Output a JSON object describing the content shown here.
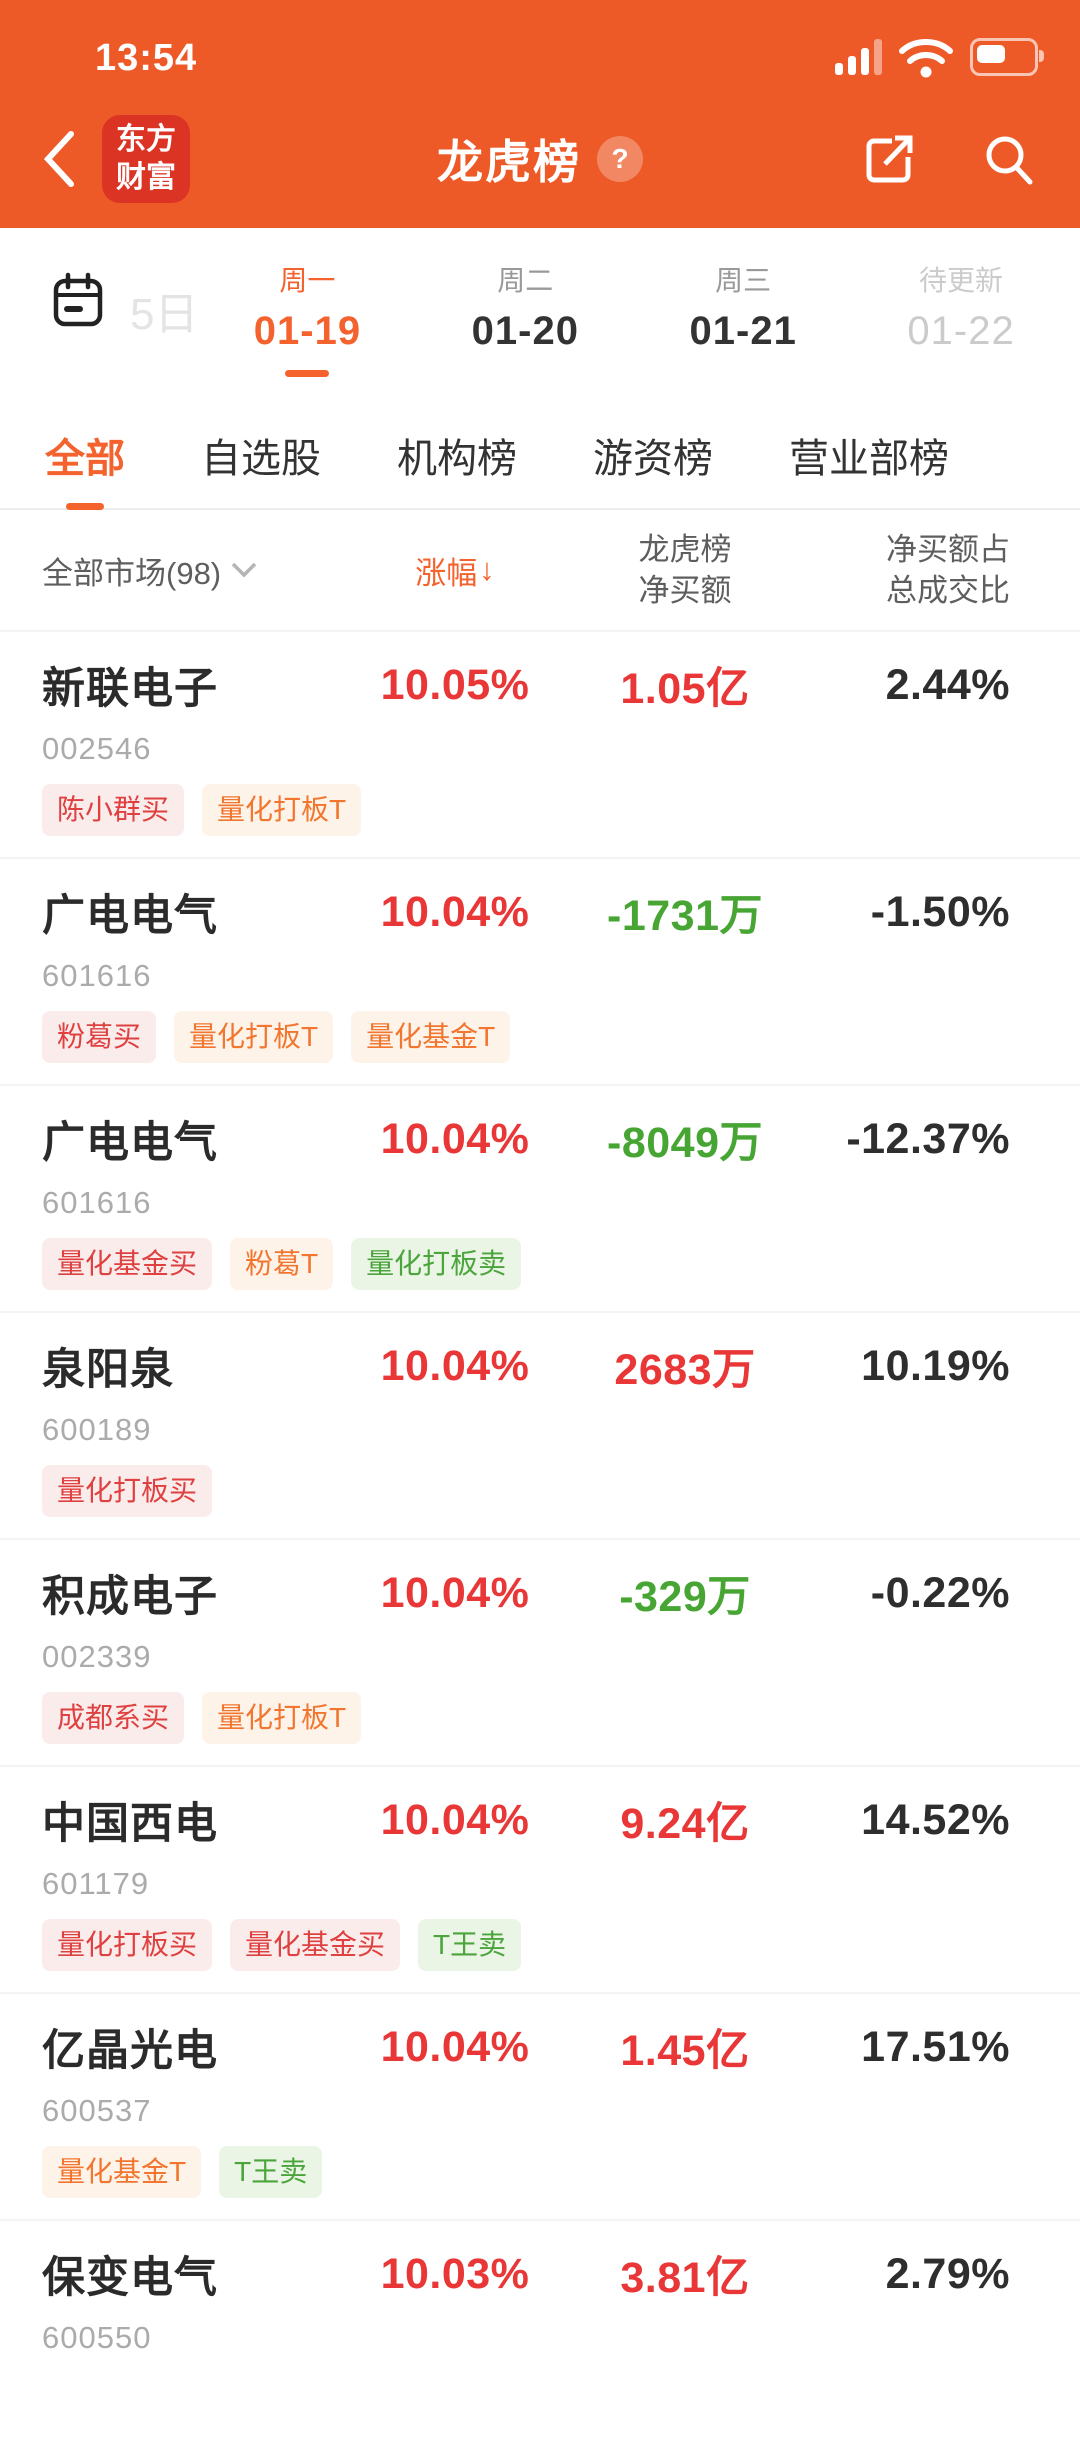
{
  "colors": {
    "header_bg": "#ED5A28",
    "accent": "#F4622E",
    "up_red": "#E93636",
    "down_green": "#47A533",
    "logo_red": "#DC3424"
  },
  "status_bar": {
    "time": "13:54"
  },
  "nav": {
    "logo_line1": "东方",
    "logo_line2": "财富",
    "title": "龙虎榜",
    "help_badge": "?"
  },
  "date_bar": {
    "partial_prev_date": "5日",
    "tabs": [
      {
        "label": "周一",
        "date": "01-19",
        "state": "active"
      },
      {
        "label": "周二",
        "date": "01-20",
        "state": "normal"
      },
      {
        "label": "周三",
        "date": "01-21",
        "state": "normal"
      },
      {
        "label": "待更新",
        "date": "01-22",
        "state": "pending"
      }
    ]
  },
  "category_tabs": [
    "全部",
    "自选股",
    "机构榜",
    "游资榜",
    "营业部榜"
  ],
  "table_header": {
    "filter": "全部市场(98)",
    "sort_label": "涨幅",
    "sort_arrow": "↓",
    "col3_line1": "龙虎榜",
    "col3_line2": "净买额",
    "col4_line1": "净买额占",
    "col4_line2": "总成交比"
  },
  "rows": [
    {
      "name": "新联电子",
      "code": "002546",
      "change": "10.05%",
      "net": "1.05亿",
      "net_color": "red",
      "ratio": "2.44%",
      "tags": [
        {
          "text": "陈小群买",
          "type": "red"
        },
        {
          "text": "量化打板T",
          "type": "orange"
        }
      ]
    },
    {
      "name": "广电电气",
      "code": "601616",
      "change": "10.04%",
      "net": "-1731万",
      "net_color": "green",
      "ratio": "-1.50%",
      "tags": [
        {
          "text": "粉葛买",
          "type": "red"
        },
        {
          "text": "量化打板T",
          "type": "orange"
        },
        {
          "text": "量化基金T",
          "type": "orange"
        }
      ]
    },
    {
      "name": "广电电气",
      "code": "601616",
      "change": "10.04%",
      "net": "-8049万",
      "net_color": "green",
      "ratio": "-12.37%",
      "tags": [
        {
          "text": "量化基金买",
          "type": "red"
        },
        {
          "text": "粉葛T",
          "type": "orange"
        },
        {
          "text": "量化打板卖",
          "type": "green"
        }
      ]
    },
    {
      "name": "泉阳泉",
      "code": "600189",
      "change": "10.04%",
      "net": "2683万",
      "net_color": "red",
      "ratio": "10.19%",
      "tags": [
        {
          "text": "量化打板买",
          "type": "red"
        }
      ]
    },
    {
      "name": "积成电子",
      "code": "002339",
      "change": "10.04%",
      "net": "-329万",
      "net_color": "green",
      "ratio": "-0.22%",
      "tags": [
        {
          "text": "成都系买",
          "type": "red"
        },
        {
          "text": "量化打板T",
          "type": "orange"
        }
      ]
    },
    {
      "name": "中国西电",
      "code": "601179",
      "change": "10.04%",
      "net": "9.24亿",
      "net_color": "red",
      "ratio": "14.52%",
      "tags": [
        {
          "text": "量化打板买",
          "type": "red"
        },
        {
          "text": "量化基金买",
          "type": "red"
        },
        {
          "text": "T王卖",
          "type": "green"
        }
      ]
    },
    {
      "name": "亿晶光电",
      "code": "600537",
      "change": "10.04%",
      "net": "1.45亿",
      "net_color": "red",
      "ratio": "17.51%",
      "tags": [
        {
          "text": "量化基金T",
          "type": "orange"
        },
        {
          "text": "T王卖",
          "type": "green"
        }
      ]
    },
    {
      "name": "保变电气",
      "code": "600550",
      "change": "10.03%",
      "net": "3.81亿",
      "net_color": "red",
      "ratio": "2.79%",
      "tags": []
    }
  ]
}
